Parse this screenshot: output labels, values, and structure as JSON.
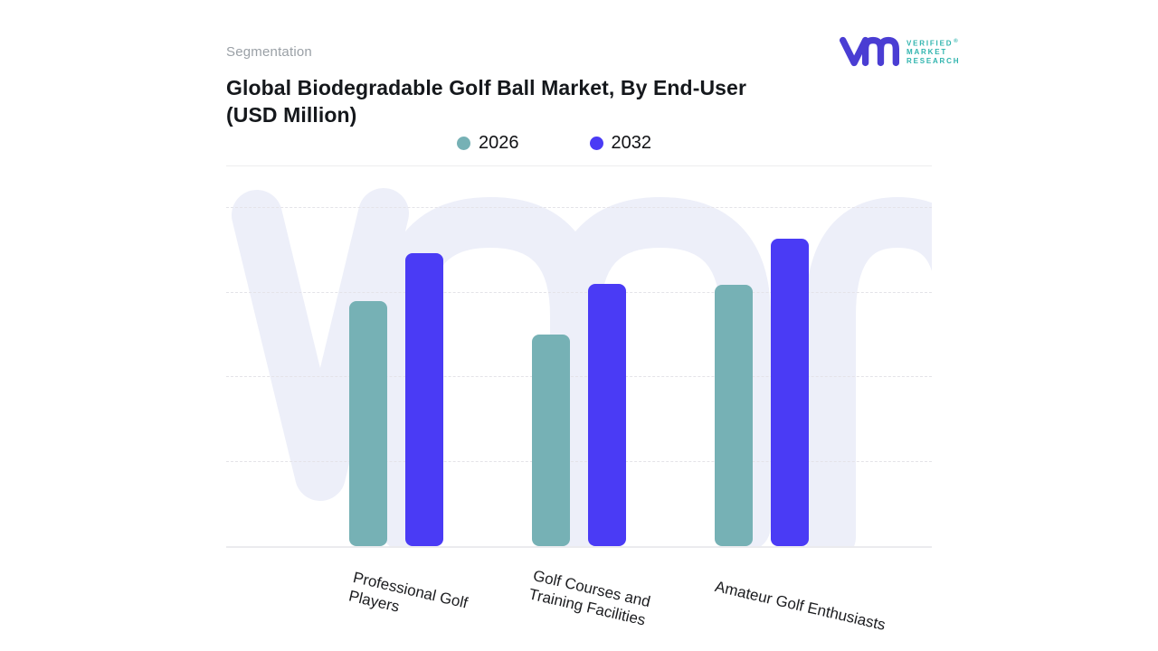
{
  "header": {
    "eyebrow": "Segmentation",
    "title_line1": "Global Biodegradable Golf Ball Market, By End-User",
    "title_line2": "(USD Million)"
  },
  "logo": {
    "glyph": "vmr-monogram",
    "line1": "VERIFIED",
    "line2": "MARKET",
    "line3": "RESEARCH",
    "registered_mark": "®",
    "glyph_color": "#4a3dd3",
    "text_color": "#2fb4ae"
  },
  "chart_data": {
    "type": "bar",
    "title": "Global Biodegradable Golf Ball Market, By End-User (USD Million)",
    "categories": [
      "Professional Golf Players",
      "Golf Courses and Training Facilities",
      "Amateur Golf Enthusiasts"
    ],
    "category_lines": [
      [
        "Professional Golf",
        "Players"
      ],
      [
        "Golf Courses and",
        "Training Facilities"
      ],
      [
        "Amateur Golf Enthusiasts"
      ]
    ],
    "series": [
      {
        "name": "2026",
        "color": "#76b1b5",
        "values": [
          2.89,
          2.5,
          3.08
        ]
      },
      {
        "name": "2032",
        "color": "#4a3bf5",
        "values": [
          3.46,
          3.09,
          3.63
        ]
      }
    ],
    "xlabel": "",
    "ylabel": "",
    "ylim": [
      0,
      4
    ],
    "y_ticks_visible": false,
    "grid": "horizontal-dashed",
    "legend_position": "top-center",
    "units_note": "y-axis unlabeled; values in relative gridline units (USD Million scale)"
  },
  "watermark": {
    "name": "vmr-watermark",
    "color": "#edeff9"
  }
}
